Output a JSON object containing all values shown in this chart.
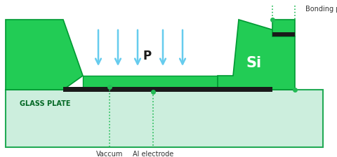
{
  "bg_color": "#ffffff",
  "glass_color": "#cceedd",
  "glass_border_color": "#22aa55",
  "green_bright": "#22cc55",
  "green_dark": "#009933",
  "black_color": "#1a1a1a",
  "arrow_color": "#66ccee",
  "dashed_color": "#22bb55",
  "labels": {
    "glass_plate": "GLASS PLATE",
    "vaccum": "Vaccum",
    "al_electrode": "Al electrode",
    "bonding_pads": "Bonding pads",
    "P": "P",
    "Si": "Si"
  },
  "figsize": [
    4.81,
    2.24
  ],
  "dpi": 100
}
